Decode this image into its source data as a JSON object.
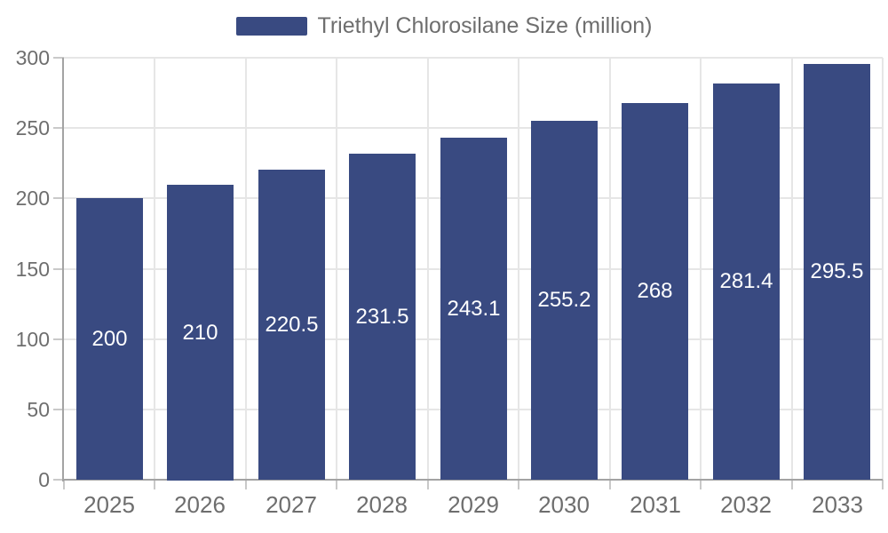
{
  "chart_data": {
    "type": "bar",
    "title": "",
    "categories": [
      "2025",
      "2026",
      "2027",
      "2028",
      "2029",
      "2030",
      "2031",
      "2032",
      "2033"
    ],
    "series": [
      {
        "name": "Triethyl Chlorosilane Size (million)",
        "values": [
          200,
          210,
          220.5,
          231.5,
          243.1,
          255.2,
          268,
          281.4,
          295.5
        ]
      }
    ],
    "xlabel": "",
    "ylabel": "",
    "ylim": [
      0,
      300
    ],
    "ytick_step": 50,
    "yticks": [
      0,
      50,
      100,
      150,
      200,
      250,
      300
    ],
    "grid": true,
    "legend_position": "top",
    "bar_value_labels_visible": true,
    "colors": {
      "bar": "#394a81",
      "bar_label": "#ffffff",
      "axis_label": "#6e6e6e",
      "legend_text": "#6e6e6e",
      "gridline": "#e6e6e6",
      "tick": "#c9c9c9",
      "axis_line": "#a3a3a3",
      "background": "#ffffff"
    }
  }
}
